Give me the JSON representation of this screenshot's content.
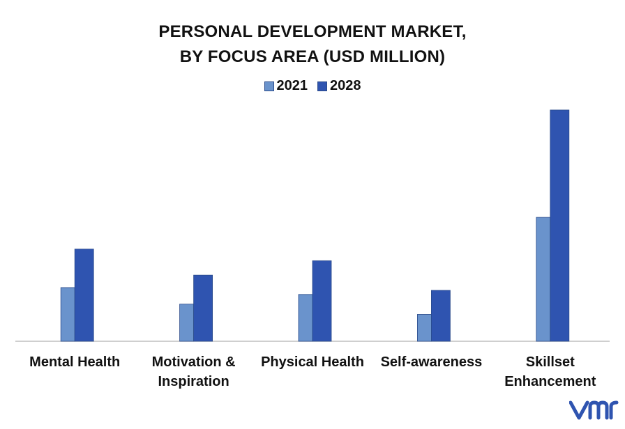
{
  "chart_data": {
    "type": "bar",
    "title_lines": [
      "PERSONAL DEVELOPMENT  MARKET,",
      "BY FOCUS AREA (USD MILLION)"
    ],
    "categories": [
      [
        "Mental Health"
      ],
      [
        "Motivation &",
        "Inspiration"
      ],
      [
        "Physical Health"
      ],
      [
        "Self-awareness"
      ],
      [
        "Skillset",
        "Enhancement"
      ]
    ],
    "series": [
      {
        "name": "2021",
        "color": "#6a93cc",
        "values": [
          78,
          54,
          68,
          39,
          180
        ]
      },
      {
        "name": "2028",
        "color": "#2f54b0",
        "values": [
          134,
          96,
          117,
          74,
          336
        ]
      }
    ],
    "ylim": [
      0,
      340
    ],
    "grid": false,
    "legend_position": "top-center",
    "brand_logo": "vmr"
  }
}
